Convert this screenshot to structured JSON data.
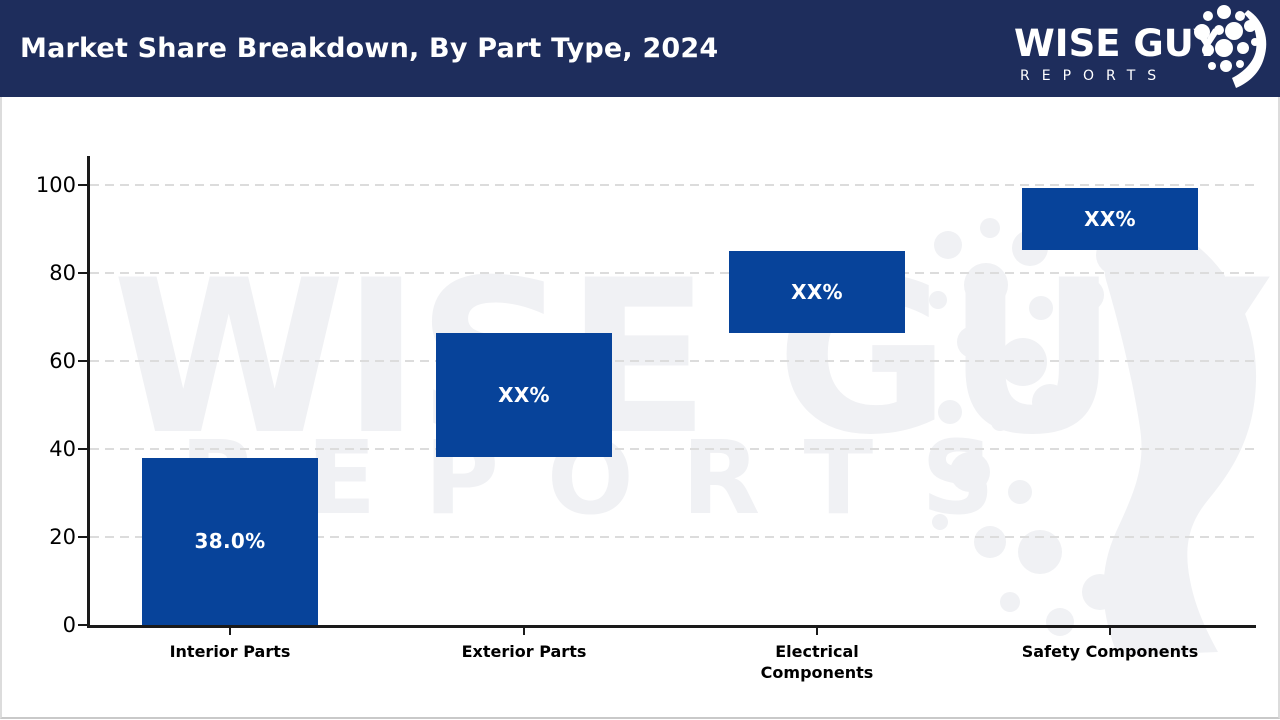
{
  "header": {
    "title": "Market Share Breakdown, By Part Type, 2024",
    "logo": {
      "brand_top": "WISE GUY",
      "brand_bottom": "REPORTS"
    }
  },
  "watermark": {
    "brand_top": "WISE GUY",
    "brand_bottom": "REPORTS"
  },
  "chart_data": {
    "type": "bar",
    "subtype": "floating-waterfall",
    "title": "Market Share Breakdown, By Part Type, 2024",
    "categories": [
      "Interior Parts",
      "Exterior Parts",
      "Electrical Components",
      "Safety Components"
    ],
    "category_lines": [
      [
        "Interior Parts"
      ],
      [
        "Exterior Parts"
      ],
      [
        "Electrical",
        "Components"
      ],
      [
        "Safety Components"
      ]
    ],
    "series": [
      {
        "name": "Market share (%)",
        "segments": [
          {
            "category": "Interior Parts",
            "start": 0,
            "end": 38.0,
            "label": "38.0%"
          },
          {
            "category": "Exterior Parts",
            "start": 38.2,
            "end": 66.4,
            "label": "XX%"
          },
          {
            "category": "Electrical Components",
            "start": 66.4,
            "end": 85.0,
            "label": "XX%"
          },
          {
            "category": "Safety Components",
            "start": 85.2,
            "end": 99.3,
            "label": "XX%"
          }
        ]
      }
    ],
    "ylim": [
      0,
      100
    ],
    "yticks": [
      0,
      20,
      40,
      60,
      80,
      100
    ],
    "grid": "horizontal-dashed",
    "legend": "none",
    "colors": {
      "bar": "#07439a",
      "bar_label": "#ffffff",
      "axis": "#1a1a1a",
      "grid": "#dcdcdc",
      "tick_label": "#000000",
      "category_label": "#000000"
    }
  },
  "theme": {
    "header_bg": "#1e2d5c",
    "page_bg": "#ffffff",
    "watermark_color": "#f0f1f4",
    "frame_border": "#dcdcdc"
  }
}
